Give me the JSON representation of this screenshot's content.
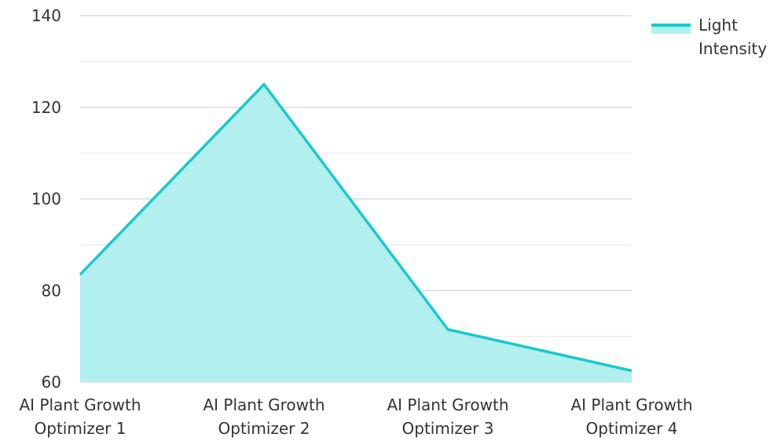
{
  "chart_data": {
    "type": "area",
    "categories": [
      [
        "AI Plant Growth",
        "Optimizer 1"
      ],
      [
        "AI Plant Growth",
        "Optimizer 2"
      ],
      [
        "AI Plant Growth",
        "Optimizer 3"
      ],
      [
        "AI Plant Growth",
        "Optimizer 4"
      ]
    ],
    "series": [
      {
        "name": [
          "Light",
          "Intensity"
        ],
        "values": [
          83.5,
          125,
          71.5,
          62.5
        ],
        "line_color": "#1cc8c8",
        "fill_color": "#b2efef"
      }
    ],
    "ylim": [
      60,
      140
    ],
    "y_ticks": [
      "60",
      "80",
      "100",
      "120",
      "140"
    ],
    "y_minor_gridlines": [
      70,
      90,
      110,
      130
    ],
    "grid": true,
    "grid_color": "#cccccc",
    "minor_grid_color": "#e6e6e6",
    "legend_position": "top-right",
    "xlabel": "",
    "ylabel": "",
    "title": ""
  }
}
